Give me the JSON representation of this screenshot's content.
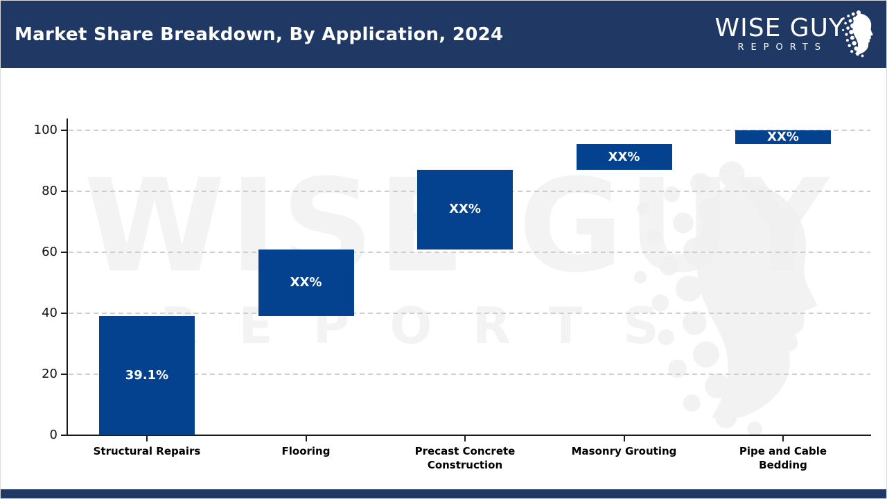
{
  "header": {
    "title": "Market Share Breakdown, By Application, 2024",
    "logo": {
      "line1": "WISE GUY",
      "line2": "REPORTS"
    }
  },
  "watermark": {
    "line1": "WISE GUY",
    "line2": "REPORTS"
  },
  "footer": {},
  "chart_data": {
    "type": "bar",
    "variant": "floating-waterfall-segments",
    "title": "Market Share Breakdown, By Application, 2024",
    "categories": [
      "Structural Repairs",
      "Flooring",
      "Precast Concrete Construction",
      "Masonry Grouting",
      "Pipe and Cable Bedding"
    ],
    "segments": [
      {
        "category": "Structural Repairs",
        "start": 0,
        "end": 39.1,
        "label": "39.1%"
      },
      {
        "category": "Flooring",
        "start": 39.1,
        "end": 61.0,
        "label": "XX%"
      },
      {
        "category": "Precast Concrete Construction",
        "start": 61.0,
        "end": 87.0,
        "label": "XX%"
      },
      {
        "category": "Masonry Grouting",
        "start": 87.0,
        "end": 95.5,
        "label": "XX%"
      },
      {
        "category": "Pipe and Cable Bedding",
        "start": 95.5,
        "end": 100.0,
        "label": "XX%"
      }
    ],
    "ylim": [
      0,
      100
    ],
    "yticks": [
      0,
      20,
      40,
      60,
      80,
      100
    ],
    "grid": "dashed-horizontal-lightgray",
    "bar_color": "#04418f",
    "bar_label_color": "#ffffff",
    "legend": null
  }
}
